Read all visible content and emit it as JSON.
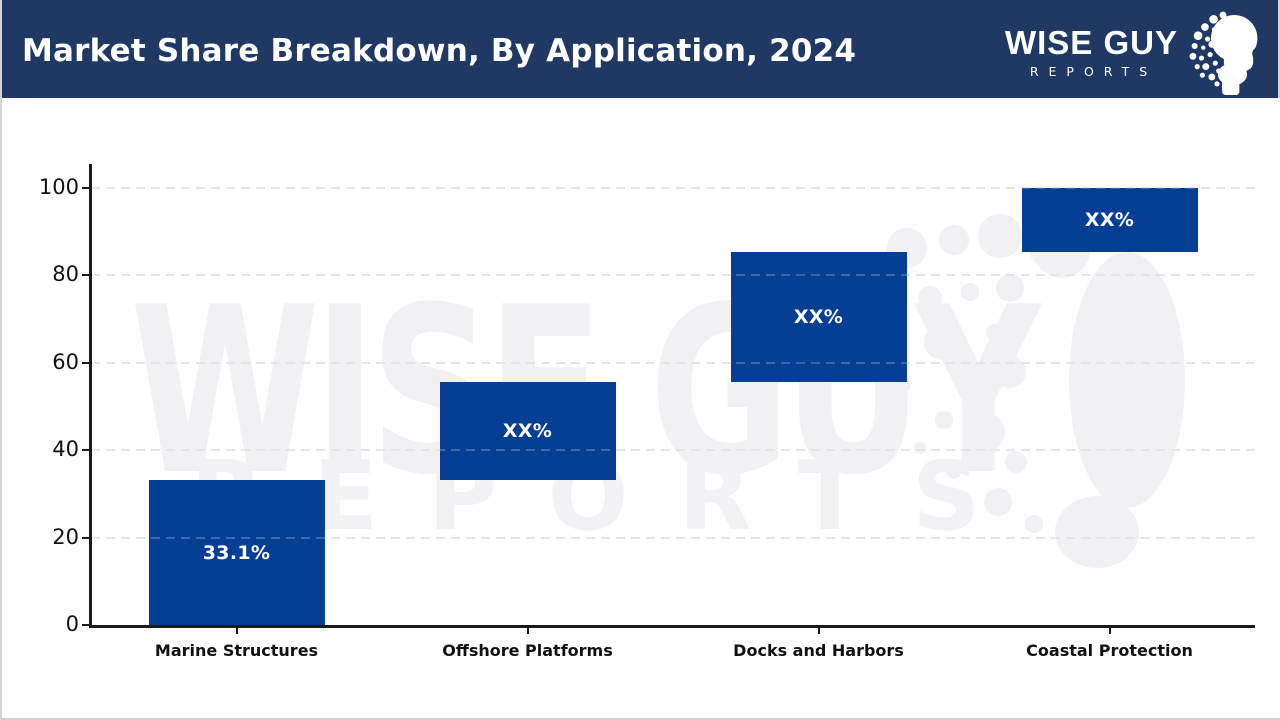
{
  "header": {
    "title": "Market Share Breakdown, By Application, 2024",
    "logo": {
      "line1": "WISE GUY",
      "line2": "REPORTS"
    }
  },
  "watermark": {
    "line1": "WISE GUY",
    "line2": "REPORTS"
  },
  "chart_data": {
    "type": "bar",
    "subtype": "waterfall",
    "title": "Market Share Breakdown, By Application, 2024",
    "categories": [
      "Marine Structures",
      "Offshore Platforms",
      "Docks and Harbors",
      "Coastal Protection"
    ],
    "segments": [
      {
        "category": "Marine Structures",
        "start": 0,
        "end": 33.1,
        "label": "33.1%"
      },
      {
        "category": "Offshore Platforms",
        "start": 33.1,
        "end": 55.6,
        "label": "XX%"
      },
      {
        "category": "Docks and Harbors",
        "start": 55.6,
        "end": 85.2,
        "label": "XX%"
      },
      {
        "category": "Coastal Protection",
        "start": 85.2,
        "end": 100,
        "label": "XX%"
      }
    ],
    "ylim": [
      0,
      100
    ],
    "yticks": [
      0,
      20,
      40,
      60,
      80,
      100
    ],
    "xlabel": "",
    "ylabel": "",
    "grid": "horizontal dashed",
    "legend": "none",
    "bar_color": "#043f94",
    "bar_label_color": "#ffffff",
    "header_bg_color": "#1f3864",
    "axis_color": "#1a1a1a",
    "grid_color": "#dcdcdc",
    "watermark_color": "#f1f1f3"
  }
}
